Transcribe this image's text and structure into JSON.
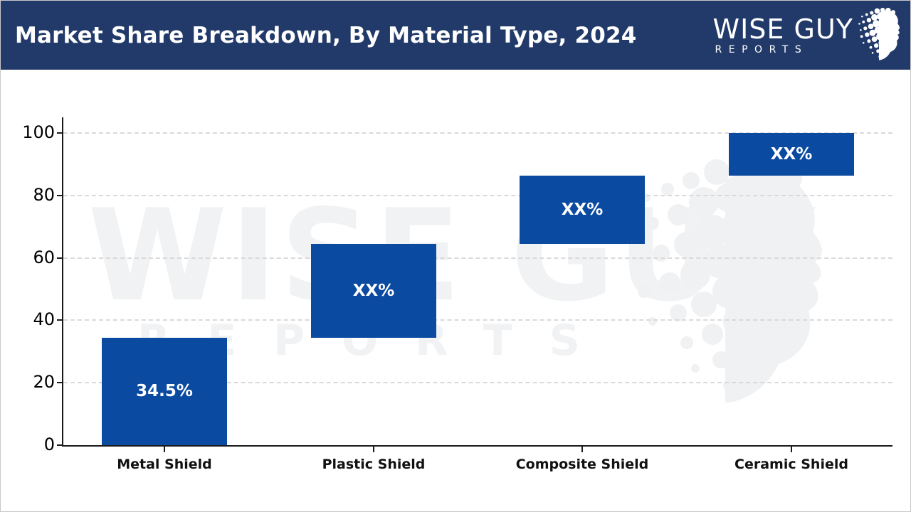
{
  "header": {
    "title": "Market Share Breakdown, By Material Type, 2024",
    "bg_color": "#223a6a",
    "logo": {
      "line1": "WISE GUY",
      "line2": "REPORTS"
    }
  },
  "watermark": {
    "line1": "WISE GUY",
    "line2": "REPORTS"
  },
  "chart_data": {
    "type": "bar",
    "subtype": "waterfall-stacked-percentage",
    "title": "Market Share Breakdown, By Material Type, 2024",
    "categories": [
      "Metal Shield",
      "Plastic Shield",
      "Composite Shield",
      "Ceramic Shield"
    ],
    "segments": [
      [
        0,
        34.5
      ],
      [
        34.5,
        64.5
      ],
      [
        64.5,
        86.3
      ],
      [
        86.3,
        100
      ]
    ],
    "segment_values": [
      34.5,
      30.0,
      21.8,
      13.7
    ],
    "bar_labels": [
      "34.5%",
      "XX%",
      "XX%",
      "XX%"
    ],
    "yticks": [
      0,
      20,
      40,
      60,
      80,
      100
    ],
    "ylim": [
      0,
      105
    ],
    "xlabel": "",
    "ylabel": "",
    "grid": "horizontal-dashed",
    "legend": "none",
    "bar_color": "#0b4aa1",
    "bar_label_color": "#ffffff"
  }
}
